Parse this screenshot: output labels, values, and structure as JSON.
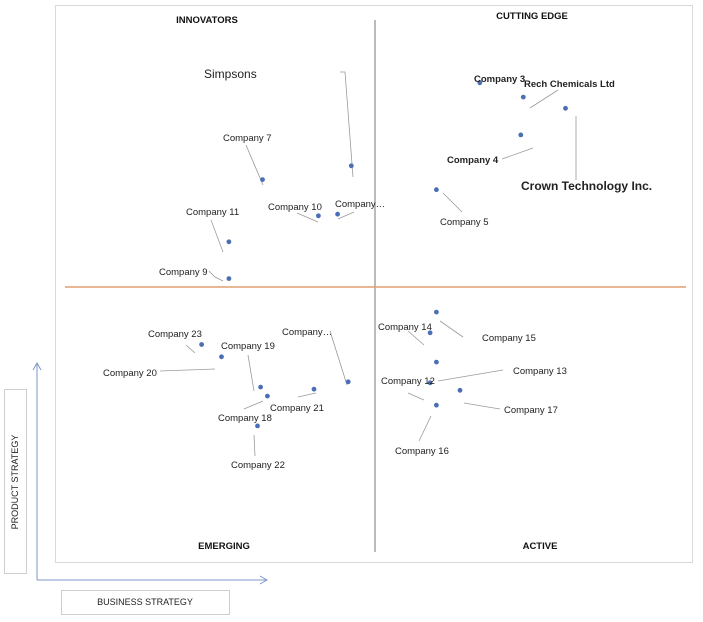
{
  "chart_data": {
    "type": "scatter",
    "quadrants": {
      "top_left": "INNOVATORS",
      "top_right": "CUTTING EDGE",
      "bottom_left": "EMERGING",
      "bottom_right": "ACTIVE"
    },
    "xlabel": "BUSINESS STRATEGY",
    "ylabel": "PRODUCT STRATEGY",
    "xlim": [
      0,
      100
    ],
    "ylim": [
      0,
      100
    ],
    "x_divider": 50,
    "y_divider": 50,
    "grid": false,
    "legend": "none",
    "colors": {
      "point": "#4a6fb5",
      "divider_horizontal": "#e0a070",
      "divider_vertical": "#777777",
      "leader": "#9a9a9a"
    },
    "points": [
      {
        "label": "Simpsons",
        "x": 46.1,
        "y": 72.6
      },
      {
        "label": "Company 7",
        "x": 31.8,
        "y": 70.0
      },
      {
        "label": "Company 10",
        "x": 40.8,
        "y": 63.2
      },
      {
        "label": "Company…",
        "x": 43.9,
        "y": 63.5
      },
      {
        "label": "Company 11",
        "x": 26.4,
        "y": 58.3
      },
      {
        "label": "Company 9",
        "x": 26.4,
        "y": 51.4
      },
      {
        "label": "Company 3",
        "x": 66.8,
        "y": 88.2
      },
      {
        "label": "Rech Chemicals Ltd",
        "x": 73.8,
        "y": 85.5
      },
      {
        "label": "Crown Technology Inc.",
        "x": 80.6,
        "y": 83.4
      },
      {
        "label": "Company 4",
        "x": 73.4,
        "y": 78.4
      },
      {
        "label": "Company 5",
        "x": 59.8,
        "y": 68.1
      },
      {
        "label": "Company 23",
        "x": 22.0,
        "y": 39.0
      },
      {
        "label": "Company 20",
        "x": 25.2,
        "y": 36.7
      },
      {
        "label": "Company 19",
        "x": 31.5,
        "y": 31.0
      },
      {
        "label": "Company…",
        "x": 45.6,
        "y": 32.0
      },
      {
        "label": "Company 21",
        "x": 40.1,
        "y": 30.6
      },
      {
        "label": "Company 18",
        "x": 32.6,
        "y": 29.3
      },
      {
        "label": "Company 22",
        "x": 31.0,
        "y": 23.7
      },
      {
        "label": "Company 14",
        "x": 58.8,
        "y": 41.2
      },
      {
        "label": "Company 15",
        "x": 59.8,
        "y": 45.1
      },
      {
        "label": "Company 13",
        "x": 59.8,
        "y": 35.7
      },
      {
        "label": "Company 12",
        "x": 58.8,
        "y": 31.8
      },
      {
        "label": "Company 17",
        "x": 63.6,
        "y": 30.4
      },
      {
        "label": "Company 16",
        "x": 59.8,
        "y": 27.6
      }
    ]
  }
}
